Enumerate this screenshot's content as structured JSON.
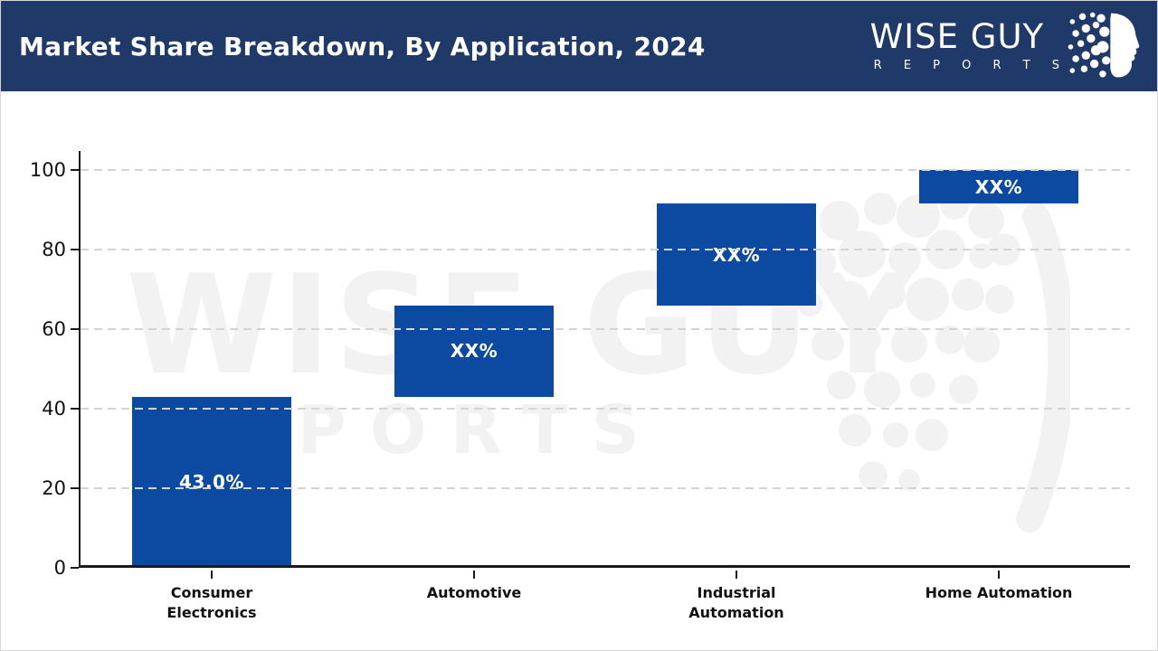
{
  "header": {
    "title": "Market Share Breakdown, By Application, 2024",
    "logo": {
      "line1": "WISE GUY",
      "line2": "R E P O R T S",
      "face_icon": "dotted-face-profile-icon"
    }
  },
  "watermark": {
    "line1": "WISE GUY",
    "line2": "REPORTS",
    "face_icon": "dotted-face-profile-icon"
  },
  "colors": {
    "header_bg": "#1F3969",
    "title_text": "#FFFFFF",
    "bar": "#0C4AA1",
    "bar_label": "#FFFFFF",
    "axis": "#1A1A1A",
    "grid": "#D4D4D4",
    "tick_label": "#111111",
    "watermark": "#F2F2F2",
    "page_border": "#D6D6D6"
  },
  "chart_data": {
    "type": "bar",
    "subtype": "waterfall",
    "title": "Market Share Breakdown, By Application, 2024",
    "categories": [
      "Consumer Electronics",
      "Automotive",
      "Industrial Automation",
      "Home Automation"
    ],
    "category_lines": [
      [
        "Consumer",
        "Electronics"
      ],
      [
        "Automotive"
      ],
      [
        "Industrial",
        "Automation"
      ],
      [
        "Home Automation"
      ]
    ],
    "segments": [
      {
        "category": "Consumer Electronics",
        "start": 0,
        "end": 43.0,
        "value": 43.0,
        "label": "43.0%"
      },
      {
        "category": "Automotive",
        "start": 43.0,
        "end": 66.0,
        "value": 23.0,
        "label": "XX%"
      },
      {
        "category": "Industrial Automation",
        "start": 66.0,
        "end": 91.5,
        "value": 25.5,
        "label": "XX%"
      },
      {
        "category": "Home Automation",
        "start": 91.5,
        "end": 100.0,
        "value": 8.5,
        "label": "XX%"
      }
    ],
    "xlabel": "",
    "ylabel": "",
    "yticks": [
      0,
      20,
      40,
      60,
      80,
      100
    ],
    "ylim": [
      0,
      104
    ],
    "grid": "horizontal-dashed",
    "legend": "none"
  }
}
